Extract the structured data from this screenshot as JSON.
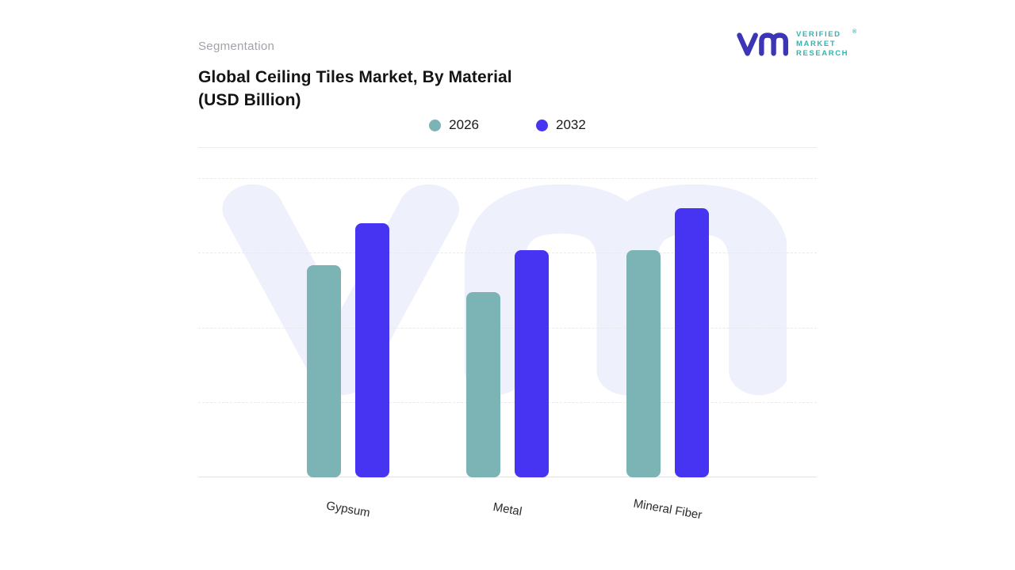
{
  "header": {
    "section_label": "Segmentation",
    "title_line1": "Global Ceiling Tiles Market, By Material",
    "title_line2": "(USD Billion)"
  },
  "logo": {
    "monogram": "vm",
    "lines": [
      "VERIFIED",
      "MARKET",
      "RESEARCH"
    ],
    "registered_mark": "®"
  },
  "colors": {
    "series_2026": "#7cb4b6",
    "series_2032": "#4733f2",
    "logo_monogram": "#3c35b5",
    "logo_text": "#2fb5b2",
    "watermark": "#eef0fb",
    "title_text": "#141414",
    "section_label_text": "#a0a3a9"
  },
  "chart_data": {
    "type": "bar",
    "title": "Global Ceiling Tiles Market, By Material (USD Billion)",
    "categories": [
      "Gypsum",
      "Metal",
      "Mineral Fiber"
    ],
    "series": [
      {
        "name": "2026",
        "color": "#7cb4b6",
        "values": [
          7.1,
          6.2,
          7.6
        ]
      },
      {
        "name": "2032",
        "color": "#4733f2",
        "values": [
          8.5,
          7.6,
          9.0
        ]
      }
    ],
    "ylim": [
      0,
      10
    ],
    "xlabel": "",
    "ylabel": "",
    "legend_position": "top-center",
    "grid": "horizontal-dashed",
    "y_axis_labels_visible": false
  }
}
